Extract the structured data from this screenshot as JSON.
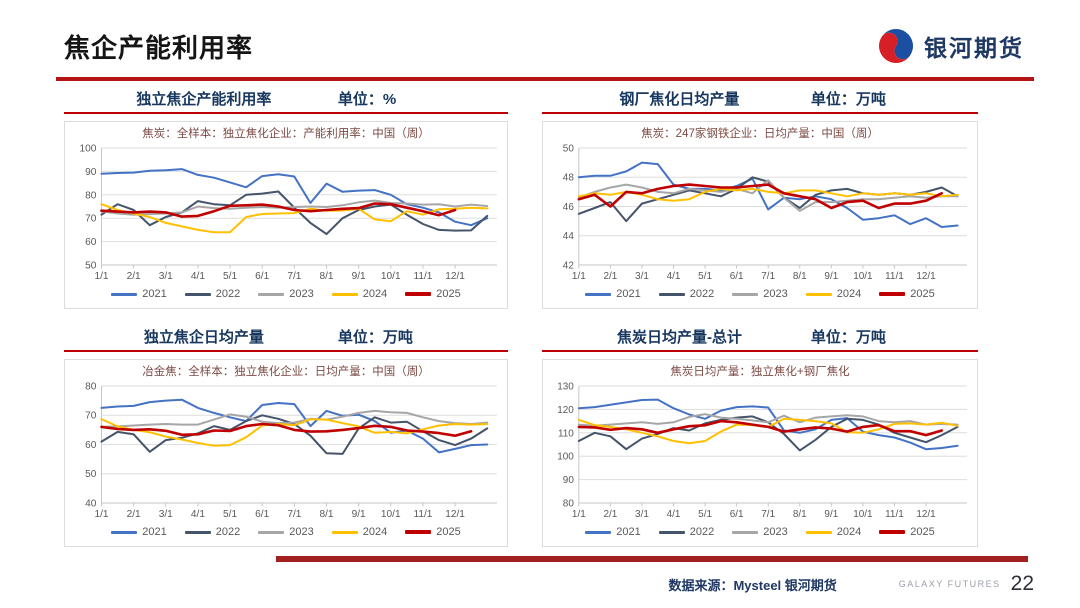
{
  "page": {
    "title": "焦企产能利用率",
    "logo": {
      "text": "银河期货"
    },
    "footer": {
      "source": "数据来源：Mysteel 银河期货",
      "brand": "GALAXY FUTURES",
      "page_number": "22"
    }
  },
  "colors": {
    "accent_red": "#c00000",
    "header_navy": "#17375e",
    "footer_bar_red": "#a32020"
  },
  "chart_data": [
    {
      "id": "independent-coker-capacity-utilization",
      "type": "line",
      "title": "独立焦企产能利用率",
      "unit_label": "单位：%",
      "subtitle": "焦炭：全样本：独立焦化企业：产能利用率：中国（周）",
      "x_tick_labels": [
        "1/1",
        "2/1",
        "3/1",
        "4/1",
        "5/1",
        "6/1",
        "7/1",
        "8/1",
        "9/1",
        "10/1",
        "11/1",
        "12/1"
      ],
      "x_step_months": 0.5,
      "x_max_month": 12.3,
      "ylim": [
        50,
        100
      ],
      "y_ticks": [
        50,
        60,
        70,
        80,
        90,
        100
      ],
      "grid": "horizontal",
      "legend_position": "bottom",
      "series": [
        {
          "name": "2021",
          "color": "#4472c4",
          "values": [
            89,
            89.3,
            89.5,
            90.3,
            90.5,
            91,
            88.5,
            87.3,
            85.3,
            83.2,
            88,
            88.8,
            87.8,
            76.5,
            84.8,
            81.3,
            81.8,
            82,
            80,
            76,
            74.5,
            72.5,
            68.5,
            67,
            70
          ]
        },
        {
          "name": "2022",
          "color": "#44546a",
          "values": [
            71.5,
            76,
            73.5,
            67,
            70.5,
            72.5,
            77.3,
            76,
            75.5,
            80,
            80.5,
            81.4,
            74.5,
            68,
            63.2,
            70,
            73.5,
            75,
            75.8,
            71.5,
            67.5,
            65,
            64.7,
            64.8,
            71
          ]
        },
        {
          "name": "2023",
          "color": "#a6a6a6",
          "values": [
            73,
            72,
            71.5,
            71.8,
            72,
            72.5,
            75,
            74.3,
            74,
            74.5,
            74.8,
            74.5,
            74.8,
            75,
            74.8,
            75.5,
            76.8,
            77.5,
            76.5,
            76.3,
            75.8,
            76,
            75,
            75.8,
            75.2
          ]
        },
        {
          "name": "2024",
          "color": "#ffc000",
          "values": [
            76,
            73.5,
            72,
            70.5,
            68,
            66.5,
            65,
            64,
            64,
            70.5,
            71.8,
            72,
            72.2,
            74,
            73.2,
            73.3,
            74,
            69.5,
            68.7,
            73,
            71.5,
            73.8,
            74,
            74.5,
            74.2
          ]
        },
        {
          "name": "2025",
          "color": "#c00000",
          "values": [
            73.2,
            72.8,
            72.5,
            72.8,
            72.5,
            70.7,
            71,
            73,
            75.3,
            75.5,
            75.8,
            75,
            73.5,
            73,
            73.5,
            74,
            74.3,
            76.3,
            76,
            74.5,
            73,
            71.3,
            73.5,
            null,
            null
          ]
        }
      ]
    },
    {
      "id": "steel-mill-coking-daily-output",
      "type": "line",
      "title": "钢厂焦化日均产量",
      "unit_label": "单位：万吨",
      "subtitle": "焦炭：247家钢铁企业：日均产量：中国（周）",
      "x_tick_labels": [
        "1/1",
        "2/1",
        "3/1",
        "4/1",
        "5/1",
        "6/1",
        "7/1",
        "8/1",
        "9/1",
        "10/1",
        "11/1",
        "12/1"
      ],
      "x_step_months": 0.5,
      "x_max_month": 12.3,
      "ylim": [
        42,
        50
      ],
      "y_ticks": [
        42,
        44,
        46,
        48,
        50
      ],
      "grid": "horizontal",
      "legend_position": "bottom",
      "series": [
        {
          "name": "2021",
          "color": "#4472c4",
          "values": [
            48,
            48.1,
            48.1,
            48.4,
            49,
            48.9,
            47.5,
            47.2,
            47.2,
            47.1,
            47.4,
            47.9,
            45.8,
            46.6,
            46.5,
            46.7,
            46.5,
            45.9,
            45.1,
            45.2,
            45.4,
            44.8,
            45.2,
            44.6,
            44.7
          ]
        },
        {
          "name": "2022",
          "color": "#44546a",
          "values": [
            45.5,
            45.9,
            46.3,
            45,
            46.2,
            46.5,
            46.8,
            47.1,
            46.9,
            46.7,
            47.2,
            48,
            47.7,
            46.6,
            45.9,
            46.8,
            47.1,
            47.2,
            46.9,
            46.8,
            46.9,
            46.8,
            47,
            47.3,
            46.7
          ]
        },
        {
          "name": "2023",
          "color": "#a6a6a6",
          "values": [
            46.6,
            47,
            47.3,
            47.5,
            47.3,
            47,
            46.9,
            47.2,
            47.1,
            47,
            47.2,
            46.9,
            47.8,
            46.6,
            45.7,
            46.3,
            46.3,
            46.4,
            46.5,
            46.5,
            46.6,
            46.7,
            46.6,
            46.7,
            46.7
          ]
        },
        {
          "name": "2024",
          "color": "#ffc000",
          "values": [
            46.7,
            46.9,
            46.8,
            47,
            46.8,
            46.5,
            46.4,
            46.5,
            47,
            47.2,
            47.1,
            47.2,
            47,
            46.9,
            47.1,
            47.1,
            46.9,
            46.7,
            46.9,
            46.8,
            46.9,
            46.8,
            46.9,
            46.7,
            46.8
          ]
        },
        {
          "name": "2025",
          "color": "#c00000",
          "values": [
            46.5,
            46.8,
            46,
            47,
            46.9,
            47.2,
            47.4,
            47.5,
            47.4,
            47.3,
            47.3,
            47.4,
            47.5,
            46.9,
            46.7,
            46.5,
            45.9,
            46.3,
            46.4,
            45.9,
            46.2,
            46.2,
            46.4,
            46.9,
            null
          ]
        }
      ]
    },
    {
      "id": "independent-coker-daily-output",
      "type": "line",
      "title": "独立焦企日均产量",
      "unit_label": "单位：万吨",
      "subtitle": "冶金焦：全样本：独立焦化企业：日均产量：中国（周）",
      "x_tick_labels": [
        "1/1",
        "2/1",
        "3/1",
        "4/1",
        "5/1",
        "6/1",
        "7/1",
        "8/1",
        "9/1",
        "10/1",
        "11/1",
        "12/1"
      ],
      "x_step_months": 0.5,
      "x_max_month": 12.3,
      "ylim": [
        40,
        80
      ],
      "y_ticks": [
        40,
        50,
        60,
        70,
        80
      ],
      "grid": "horizontal",
      "legend_position": "bottom",
      "series": [
        {
          "name": "2021",
          "color": "#4472c4",
          "values": [
            72.5,
            73,
            73.2,
            74.5,
            75,
            75.3,
            72.5,
            70.8,
            69.3,
            68,
            73.5,
            74.2,
            73.8,
            66.3,
            71.5,
            69.8,
            70.2,
            68,
            64,
            64.8,
            62,
            57.3,
            58.5,
            59.8,
            60
          ]
        },
        {
          "name": "2022",
          "color": "#44546a",
          "values": [
            61,
            64.3,
            63.5,
            57.5,
            61.5,
            62.3,
            63.8,
            66.3,
            65,
            68,
            70,
            68.8,
            67,
            63,
            57,
            56.8,
            65.5,
            69.3,
            67.5,
            67.8,
            64.5,
            61.5,
            59.8,
            62,
            65.5
          ]
        },
        {
          "name": "2023",
          "color": "#a6a6a6",
          "values": [
            66,
            66.2,
            66.5,
            66.8,
            67,
            66.8,
            66.8,
            68.5,
            70.3,
            69.5,
            67.8,
            67.3,
            67.5,
            68.8,
            68.5,
            69.5,
            70.8,
            71.5,
            71,
            70.8,
            69.3,
            68,
            67.3,
            67,
            67.5
          ]
        },
        {
          "name": "2024",
          "color": "#ffc000",
          "values": [
            68.7,
            66.2,
            65,
            64.2,
            62.7,
            61.7,
            60.5,
            59.6,
            59.8,
            62.5,
            66.5,
            67,
            66.6,
            68.6,
            68.5,
            67.3,
            66.2,
            64,
            64.3,
            63.8,
            65.2,
            66.5,
            67,
            66.8,
            67
          ]
        },
        {
          "name": "2025",
          "color": "#c00000",
          "values": [
            66,
            65.3,
            65,
            65.2,
            64.7,
            63.3,
            63.5,
            64.8,
            64.6,
            66.3,
            67,
            66.6,
            65,
            64.4,
            64.5,
            65,
            65.6,
            66.4,
            66,
            64.8,
            64.4,
            63.9,
            63,
            64.5,
            null
          ]
        }
      ]
    },
    {
      "id": "coke-daily-output-total",
      "type": "line",
      "title": "焦炭日均产量-总计",
      "unit_label": "单位：万吨",
      "subtitle": "焦炭日均产量：独立焦化+钢厂焦化",
      "x_tick_labels": [
        "1/1",
        "2/1",
        "3/1",
        "4/1",
        "5/1",
        "6/1",
        "7/1",
        "8/1",
        "9/1",
        "10/1",
        "11/1",
        "12/1"
      ],
      "x_step_months": 0.5,
      "x_max_month": 12.3,
      "ylim": [
        80,
        130
      ],
      "y_ticks": [
        80,
        90,
        100,
        110,
        120,
        130
      ],
      "grid": "horizontal",
      "legend_position": "bottom",
      "series": [
        {
          "name": "2021",
          "color": "#4472c4",
          "values": [
            120.5,
            121,
            122,
            123,
            124,
            124.2,
            120.5,
            117.8,
            116,
            119.5,
            121,
            121.3,
            120.8,
            111,
            110,
            111.5,
            115.5,
            116.3,
            110.5,
            109,
            108,
            105.8,
            103,
            103.5,
            104.5
          ]
        },
        {
          "name": "2022",
          "color": "#44546a",
          "values": [
            106.5,
            110,
            108.5,
            103,
            107.5,
            109.5,
            112,
            111,
            114,
            115.5,
            116.5,
            117,
            114.5,
            109.5,
            102.5,
            107,
            112.5,
            116,
            115.5,
            113.5,
            110,
            108,
            106,
            109,
            112.5
          ]
        },
        {
          "name": "2023",
          "color": "#a6a6a6",
          "values": [
            113.5,
            113,
            113.5,
            114,
            114.5,
            113.8,
            114.5,
            116.8,
            118,
            116.5,
            116,
            115.3,
            114.5,
            117.3,
            114.5,
            116.5,
            117,
            117.5,
            117,
            115,
            114.5,
            115,
            113.5,
            113.8,
            113.5
          ]
        },
        {
          "name": "2024",
          "color": "#ffc000",
          "values": [
            115.5,
            113.3,
            112.5,
            111.5,
            110,
            108.5,
            106.5,
            105.5,
            106.5,
            110.5,
            113.5,
            113.3,
            112.5,
            116,
            115.5,
            115,
            114,
            110.3,
            110,
            111.5,
            113.8,
            114,
            113.5,
            114.3,
            113
          ]
        },
        {
          "name": "2025",
          "color": "#c00000",
          "values": [
            112.5,
            112.3,
            111.3,
            112,
            111.5,
            110,
            111.5,
            112.8,
            113.2,
            115,
            114.5,
            113.5,
            112.5,
            110.5,
            111.5,
            112.3,
            111.8,
            110.5,
            112.5,
            113.3,
            110.7,
            110.7,
            109,
            111,
            null
          ]
        }
      ]
    }
  ]
}
